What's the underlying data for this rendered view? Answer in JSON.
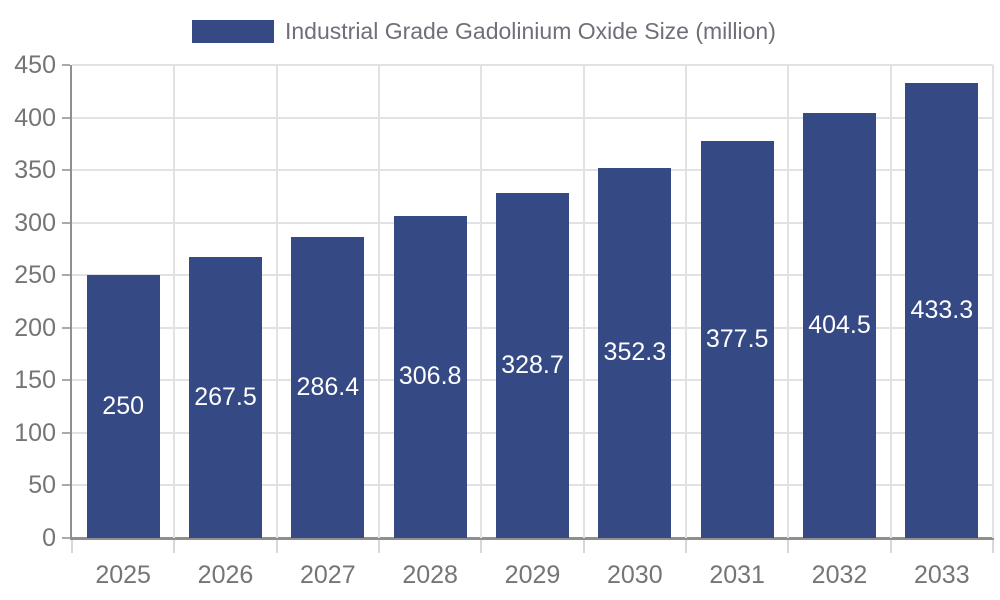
{
  "chart_data": {
    "type": "bar",
    "title": "Industrial Grade Gadolinium Oxide Size (million)",
    "series_name": "Industrial Grade Gadolinium Oxide Size (million)",
    "categories": [
      "2025",
      "2026",
      "2027",
      "2028",
      "2029",
      "2030",
      "2031",
      "2032",
      "2033"
    ],
    "values": [
      250,
      267.5,
      286.4,
      306.8,
      328.7,
      352.3,
      377.5,
      404.5,
      433.3
    ],
    "value_labels": [
      "250",
      "267.5",
      "286.4",
      "306.8",
      "328.7",
      "352.3",
      "377.5",
      "404.5",
      "433.3"
    ],
    "xlabel": "",
    "ylabel": "",
    "ylim": [
      0,
      450
    ],
    "ytick_step": 50,
    "yticks": [
      "0",
      "50",
      "100",
      "150",
      "200",
      "250",
      "300",
      "350",
      "400",
      "450"
    ],
    "grid": true,
    "legend_position": "top"
  },
  "colors": {
    "bar": "#354985",
    "bar_label": "#ffffff",
    "grid": "#e2e2e6",
    "axis": "#8f8f8f",
    "y_tick": "#aaaaaa",
    "x_tick": "#d8d8dc",
    "tick_label": "#757575",
    "legend_text": "#6e7079",
    "background": "#ffffff"
  }
}
